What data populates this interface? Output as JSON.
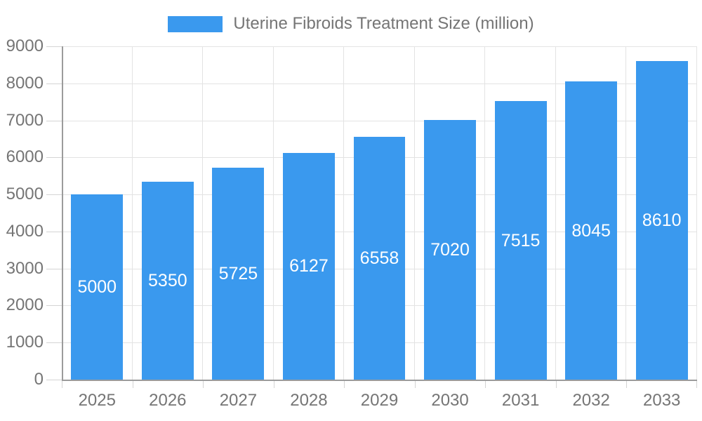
{
  "legend": {
    "label": "Uterine Fibroids Treatment Size (million)"
  },
  "chart_data": {
    "type": "bar",
    "categories": [
      "2025",
      "2026",
      "2027",
      "2028",
      "2029",
      "2030",
      "2031",
      "2032",
      "2033"
    ],
    "values": [
      5000,
      5350,
      5725,
      6127,
      6558,
      7020,
      7515,
      8045,
      8610
    ],
    "series": [
      {
        "name": "Uterine Fibroids Treatment Size (million)",
        "values": [
          5000,
          5350,
          5725,
          6127,
          6558,
          7020,
          7515,
          8045,
          8610
        ]
      }
    ],
    "title": "",
    "xlabel": "",
    "ylabel": "",
    "ylim": [
      0,
      9000
    ],
    "ytick_step": 1000,
    "ytick_labels": [
      "0",
      "1000",
      "2000",
      "3000",
      "4000",
      "5000",
      "6000",
      "7000",
      "8000",
      "9000"
    ],
    "bar_value_labels": [
      "5000",
      "5350",
      "5725",
      "6127",
      "6558",
      "7020",
      "7515",
      "8045",
      "8610"
    ],
    "legend_position": "top-center",
    "grid": true,
    "colors": {
      "bar": "#3a99ee",
      "axis_text": "#757575",
      "bar_label_text": "#ffffff",
      "gridline": "#e3e3e3",
      "tick": "#d4d4d4",
      "axis_line": "#9b9b9b",
      "background": "#ffffff"
    }
  }
}
